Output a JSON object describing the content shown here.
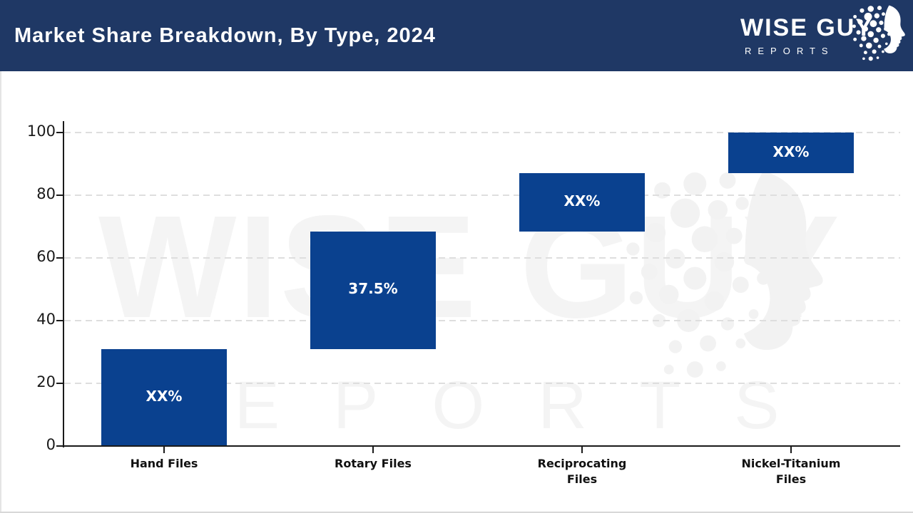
{
  "header": {
    "title": "Market Share Breakdown, By Type, 2024",
    "bg_color": "#1f3865",
    "logo": {
      "wordmark": "WISE GUY",
      "subtext": "REPORTS"
    }
  },
  "watermark": {
    "wordmark": "WISE GUY",
    "subtext": "REPORTS"
  },
  "chart_data": {
    "type": "bar",
    "subtype": "floating-waterfall",
    "title": "Market Share Breakdown, By Type, 2024",
    "categories": [
      "Hand Files",
      "Rotary Files",
      "Reciprocating\nFiles",
      "Nickel-Titanium\nFiles"
    ],
    "segments": [
      {
        "category": "Hand Files",
        "start": 0,
        "end": 31,
        "value": 31,
        "label": "XX%"
      },
      {
        "category": "Rotary Files",
        "start": 31,
        "end": 68.5,
        "value": 37.5,
        "label": "37.5%"
      },
      {
        "category": "Reciprocating Files",
        "start": 68.5,
        "end": 87,
        "value": 18.5,
        "label": "XX%"
      },
      {
        "category": "Nickel-Titanium Files",
        "start": 87,
        "end": 100,
        "value": 13,
        "label": "XX%"
      }
    ],
    "yticks": [
      0,
      20,
      40,
      60,
      80,
      100
    ],
    "ylim": [
      0,
      104
    ],
    "xlabel": "",
    "ylabel": "",
    "grid": "horizontal-dashed",
    "legend": null,
    "bar_color": "#0a418f",
    "bar_label_color": "#ffffff",
    "axis_color": "#1a1a1a",
    "gridline_color": "#dedede",
    "watermark_color": "#f4f4f4"
  }
}
